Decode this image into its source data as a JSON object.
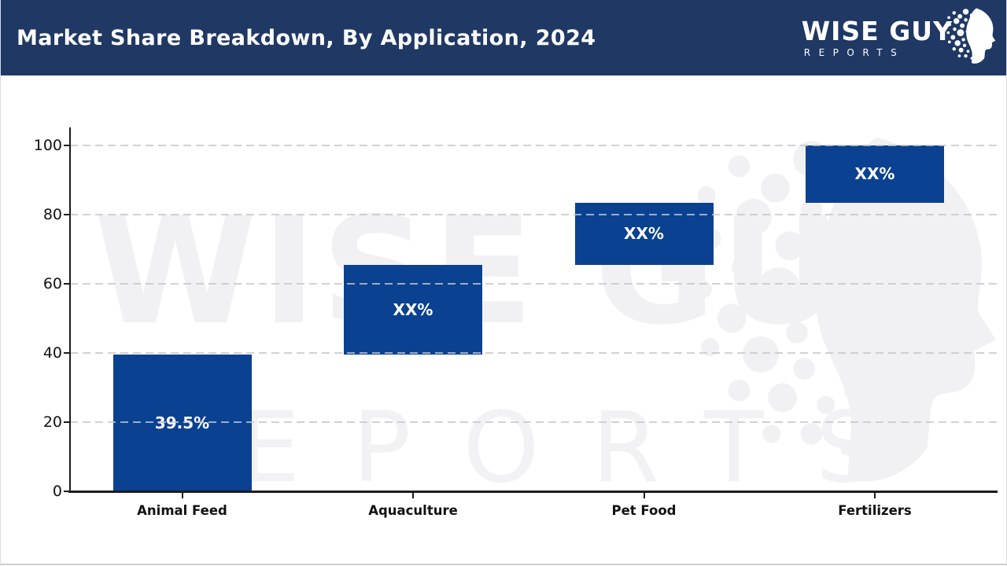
{
  "header": {
    "title": "Market Share Breakdown, By Application, 2024",
    "background": "#1f3864",
    "logo": {
      "line1": "WISE GUY",
      "line2": "REPORTS"
    }
  },
  "watermark": {
    "line1": "WISE GUY",
    "line2": "REPORTS"
  },
  "colors": {
    "header_bg": "#1f3864",
    "bar": "#0a4191",
    "axis": "#1c1c1c",
    "grid": "#d8d8da",
    "watermark": "#f1f1f3",
    "value_label": "#ffffff"
  },
  "chart_data": {
    "type": "bar",
    "variant": "floating-waterfall",
    "title": "Market Share Breakdown, By Application, 2024",
    "categories": [
      "Animal Feed",
      "Aquaculture",
      "Pet Food",
      "Fertilizers"
    ],
    "segments": [
      {
        "category": "Animal Feed",
        "start": 0,
        "end": 39.5,
        "label": "39.5%"
      },
      {
        "category": "Aquaculture",
        "start": 39.5,
        "end": 65.5,
        "label": "XX%"
      },
      {
        "category": "Pet Food",
        "start": 65.5,
        "end": 83.5,
        "label": "XX%"
      },
      {
        "category": "Fertilizers",
        "start": 83.5,
        "end": 100,
        "label": "XX%"
      }
    ],
    "xlabel": "",
    "ylabel": "",
    "ylim": [
      0,
      100
    ],
    "yticks": [
      0,
      20,
      40,
      60,
      80,
      100
    ],
    "grid": "horizontal-dashed",
    "grid_above_bars": true,
    "legend": "none",
    "bar_color": "#0a4191",
    "value_label_color": "#ffffff"
  }
}
